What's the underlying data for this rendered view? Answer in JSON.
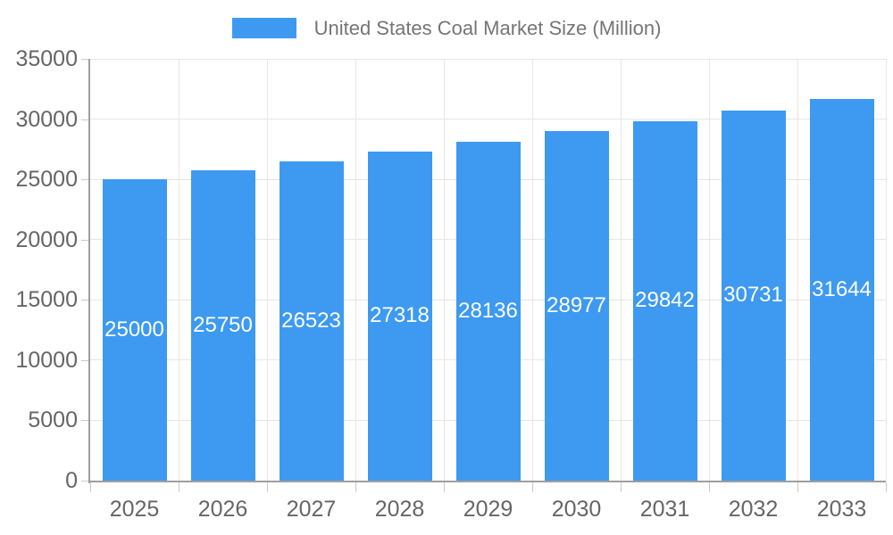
{
  "chart_data": {
    "type": "bar",
    "title": "United States Coal Market Size (Million)",
    "legend": {
      "label": "United States Coal Market Size (Million)",
      "position": "top-center"
    },
    "categories": [
      "2025",
      "2026",
      "2027",
      "2028",
      "2029",
      "2030",
      "2031",
      "2032",
      "2033"
    ],
    "series": [
      {
        "name": "United States Coal Market Size (Million)",
        "values": [
          25000,
          25750,
          26523,
          27318,
          28136,
          28977,
          29842,
          30731,
          31644
        ]
      }
    ],
    "xlabel": "",
    "ylabel": "",
    "ylim": [
      0,
      35000
    ],
    "ytick_step": 5000,
    "yticks": [
      0,
      5000,
      10000,
      15000,
      20000,
      25000,
      30000,
      35000
    ],
    "grid": true,
    "bar_label_position": "inside-middle",
    "colors": {
      "bar": "#3D9AF0",
      "bar_label": "#ffffff",
      "grid": "#e6e6e6",
      "axis_line": "#9e9e9e",
      "tick": "#c9c9c9",
      "axis_text": "#666666",
      "legend_text": "#757575",
      "background": "#ffffff"
    }
  }
}
